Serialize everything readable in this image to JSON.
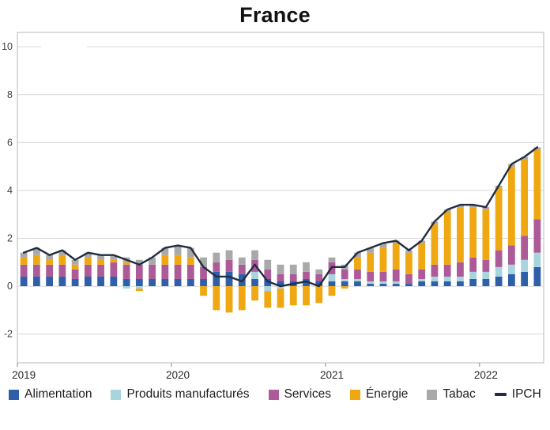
{
  "title": "France",
  "axes": {
    "yticks": [
      -2,
      0,
      2,
      4,
      6,
      8,
      10
    ],
    "xticks": [
      "2019",
      "2020",
      "2021",
      "2022"
    ]
  },
  "chart_data": {
    "type": "bar",
    "stacked": true,
    "title": "France",
    "x": [
      "2019-01",
      "2019-02",
      "2019-03",
      "2019-04",
      "2019-05",
      "2019-06",
      "2019-07",
      "2019-08",
      "2019-09",
      "2019-10",
      "2019-11",
      "2019-12",
      "2020-01",
      "2020-02",
      "2020-03",
      "2020-04",
      "2020-05",
      "2020-06",
      "2020-07",
      "2020-08",
      "2020-09",
      "2020-10",
      "2020-11",
      "2020-12",
      "2021-01",
      "2021-02",
      "2021-03",
      "2021-04",
      "2021-05",
      "2021-06",
      "2021-07",
      "2021-08",
      "2021-09",
      "2021-10",
      "2021-11",
      "2021-12",
      "2022-01",
      "2022-02",
      "2022-03",
      "2022-04",
      "2022-05"
    ],
    "series": [
      {
        "name": "Alimentation",
        "color": "#2e5fa8",
        "values": [
          0.4,
          0.4,
          0.4,
          0.4,
          0.3,
          0.4,
          0.4,
          0.4,
          0.3,
          0.3,
          0.3,
          0.3,
          0.3,
          0.3,
          0.3,
          0.6,
          0.6,
          0.5,
          0.3,
          0.3,
          0.2,
          0.2,
          0.3,
          0.2,
          0.2,
          0.2,
          0.2,
          0.1,
          0.1,
          0.1,
          0.1,
          0.2,
          0.2,
          0.2,
          0.2,
          0.3,
          0.3,
          0.4,
          0.5,
          0.6,
          0.8
        ]
      },
      {
        "name": "Produits manufacturés",
        "color": "#a7d4dd",
        "values": [
          0.0,
          0.0,
          0.0,
          0.0,
          0.0,
          0.0,
          0.0,
          0.0,
          -0.1,
          -0.1,
          0.0,
          0.0,
          0.0,
          0.0,
          0.0,
          0.0,
          0.0,
          0.0,
          0.3,
          -0.2,
          -0.1,
          0.0,
          0.0,
          0.0,
          0.3,
          0.1,
          0.1,
          0.1,
          0.1,
          0.1,
          0.0,
          0.1,
          0.2,
          0.2,
          0.2,
          0.3,
          0.3,
          0.4,
          0.4,
          0.5,
          0.6
        ]
      },
      {
        "name": "Services",
        "color": "#ad5a99",
        "values": [
          0.5,
          0.5,
          0.5,
          0.5,
          0.4,
          0.5,
          0.5,
          0.6,
          0.6,
          0.6,
          0.6,
          0.6,
          0.6,
          0.6,
          0.5,
          0.4,
          0.5,
          0.4,
          0.5,
          0.4,
          0.3,
          0.3,
          0.3,
          0.3,
          0.5,
          0.4,
          0.4,
          0.4,
          0.4,
          0.5,
          0.4,
          0.4,
          0.5,
          0.5,
          0.6,
          0.6,
          0.5,
          0.7,
          0.8,
          1.0,
          1.4
        ]
      },
      {
        "name": "Énergie",
        "color": "#efa712",
        "values": [
          0.3,
          0.4,
          0.2,
          0.4,
          0.2,
          0.3,
          0.2,
          0.1,
          0.1,
          -0.1,
          0.0,
          0.4,
          0.4,
          0.3,
          -0.4,
          -1.0,
          -1.1,
          -1.0,
          -0.6,
          -0.7,
          -0.8,
          -0.8,
          -0.8,
          -0.7,
          -0.4,
          -0.1,
          0.5,
          0.8,
          1.0,
          1.1,
          0.9,
          1.1,
          1.7,
          2.2,
          2.3,
          2.1,
          2.1,
          2.6,
          3.3,
          3.2,
          2.9
        ]
      },
      {
        "name": "Tabac",
        "color": "#a9a9a9",
        "values": [
          0.2,
          0.3,
          0.2,
          0.2,
          0.2,
          0.2,
          0.2,
          0.2,
          0.2,
          0.2,
          0.3,
          0.3,
          0.4,
          0.4,
          0.4,
          0.4,
          0.4,
          0.3,
          0.4,
          0.4,
          0.4,
          0.4,
          0.4,
          0.2,
          0.2,
          0.2,
          0.2,
          0.2,
          0.2,
          0.1,
          0.1,
          0.1,
          0.1,
          0.1,
          0.1,
          0.1,
          0.1,
          0.1,
          0.1,
          0.1,
          0.1
        ]
      }
    ],
    "line": {
      "name": "IPCH",
      "color": "#222d40",
      "values": [
        1.4,
        1.6,
        1.3,
        1.5,
        1.1,
        1.4,
        1.3,
        1.3,
        1.1,
        0.9,
        1.2,
        1.6,
        1.7,
        1.6,
        0.8,
        0.4,
        0.4,
        0.2,
        0.9,
        0.2,
        0.0,
        0.1,
        0.2,
        0.0,
        0.8,
        0.8,
        1.4,
        1.6,
        1.8,
        1.9,
        1.5,
        1.9,
        2.7,
        3.2,
        3.4,
        3.4,
        3.3,
        4.2,
        5.1,
        5.4,
        5.8
      ]
    },
    "ylim": [
      -3.2,
      10.6
    ],
    "yticks": [
      -2,
      0,
      2,
      4,
      6,
      8,
      10
    ],
    "xticks": [
      "2019",
      "2020",
      "2021",
      "2022"
    ],
    "xtick_positions": [
      0,
      12,
      24,
      36
    ],
    "grid": true,
    "legend_position": "bottom"
  }
}
